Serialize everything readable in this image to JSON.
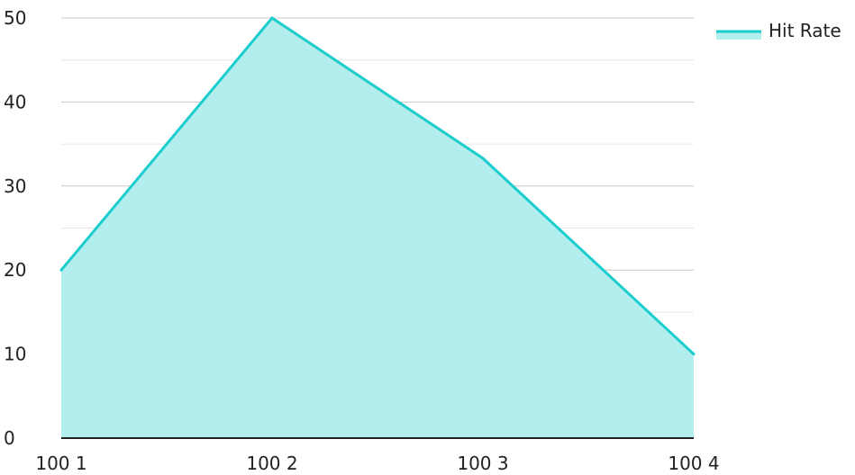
{
  "chart_data": {
    "type": "area",
    "title": "",
    "xlabel": "",
    "ylabel": "",
    "categories": [
      "100 1",
      "100 2",
      "100 3",
      "100 4"
    ],
    "series": [
      {
        "name": "Hit Rate",
        "values": [
          20,
          50,
          33.3,
          10
        ]
      }
    ],
    "ylim": [
      0,
      50
    ],
    "y_ticks": [
      "0",
      "10",
      "20",
      "30",
      "40",
      "50"
    ],
    "grid": true,
    "legend": "top-right",
    "colors": {
      "line": "#1ccdcd",
      "fill": "#b2eeed",
      "grid": "#c8c8c8",
      "minor_grid": "#e6e6e6",
      "axis": "#222222"
    }
  }
}
